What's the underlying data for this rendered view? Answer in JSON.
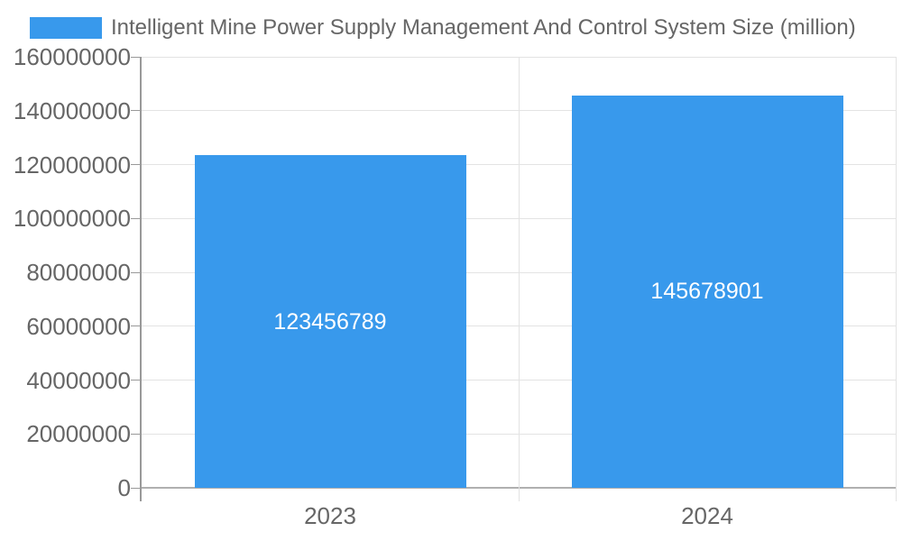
{
  "chart_data": {
    "type": "bar",
    "title": "Intelligent Mine Power Supply Management And Control System Size (million)",
    "categories": [
      "2023",
      "2024"
    ],
    "series": [
      {
        "name": "Intelligent Mine Power Supply Management And Control System Size (million)",
        "values": [
          123456789,
          145678901
        ]
      }
    ],
    "values": [
      123456789,
      145678901
    ],
    "data_labels": [
      "123456789",
      "145678901"
    ],
    "xlabel": "",
    "ylabel": "",
    "ylim": [
      0,
      160000000
    ],
    "ytick_step": 20000000,
    "ytick_labels": [
      "0",
      "20000000",
      "40000000",
      "60000000",
      "80000000",
      "100000000",
      "120000000",
      "140000000",
      "160000000"
    ],
    "grid": true,
    "legend_position": "top-left",
    "colors": {
      "bar": "#3899EC",
      "value_label": "#FFFFFF",
      "axis_text": "#666666",
      "grid_line": "#E3E3E3",
      "axis_line": "#999999",
      "baseline": "#B0B0B0"
    }
  }
}
